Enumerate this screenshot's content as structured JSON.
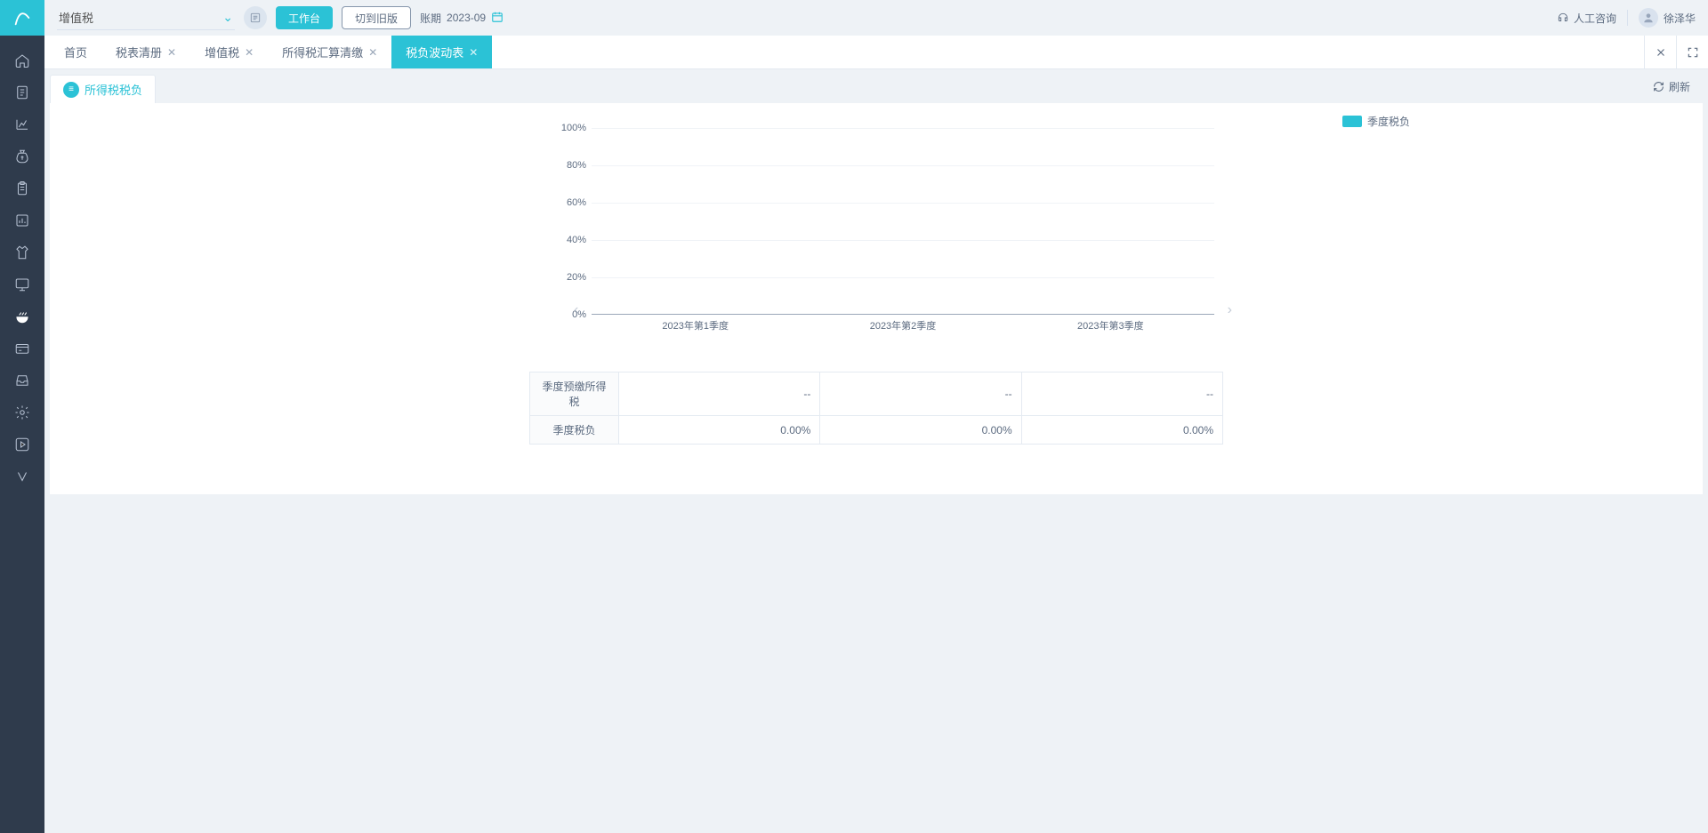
{
  "sidebar": {
    "logo_color": "#2bc2d6",
    "items": [
      {
        "name": "home-icon"
      },
      {
        "name": "document-icon"
      },
      {
        "name": "chart-icon"
      },
      {
        "name": "moneybag-icon"
      },
      {
        "name": "clipboard-icon"
      },
      {
        "name": "report-icon"
      },
      {
        "name": "shirt-icon"
      },
      {
        "name": "screen-icon"
      },
      {
        "name": "hotbowl-icon",
        "active": true
      },
      {
        "name": "card-icon"
      },
      {
        "name": "inbox-icon"
      },
      {
        "name": "gear-icon"
      },
      {
        "name": "play-icon"
      },
      {
        "name": "v-icon"
      }
    ]
  },
  "header": {
    "company_label": "增值税",
    "workbench_label": "工作台",
    "switch_old_label": "切到旧版",
    "period_key": "账期",
    "period_value": "2023-09",
    "support_label": "人工咨询",
    "user_name": "徐泽华"
  },
  "tabs": [
    {
      "label": "首页",
      "closable": false
    },
    {
      "label": "税表清册",
      "closable": true
    },
    {
      "label": "增值税",
      "closable": true
    },
    {
      "label": "所得税汇算清缴",
      "closable": true
    },
    {
      "label": "税负波动表",
      "closable": true,
      "active": true
    }
  ],
  "subtab": {
    "label": "所得税税负"
  },
  "refresh_label": "刷新",
  "chart": {
    "type": "bar",
    "legend_label": "季度税负",
    "legend_color": "#2bc2d6",
    "ylim": [
      0,
      100
    ],
    "ytick_step": 20,
    "ytick_suffix": "%",
    "categories": [
      "2023年第1季度",
      "2023年第2季度",
      "2023年第3季度"
    ],
    "values": [
      0,
      0,
      0
    ],
    "grid_color": "#f0f3f7",
    "axis_color": "#9aa7b8",
    "label_color": "#5c6b80",
    "label_fontsize": 11
  },
  "table": {
    "row_headers": [
      "季度预缴所得税",
      "季度税负"
    ],
    "rows": [
      [
        "--",
        "--",
        "--"
      ],
      [
        "0.00%",
        "0.00%",
        "0.00%"
      ]
    ]
  }
}
